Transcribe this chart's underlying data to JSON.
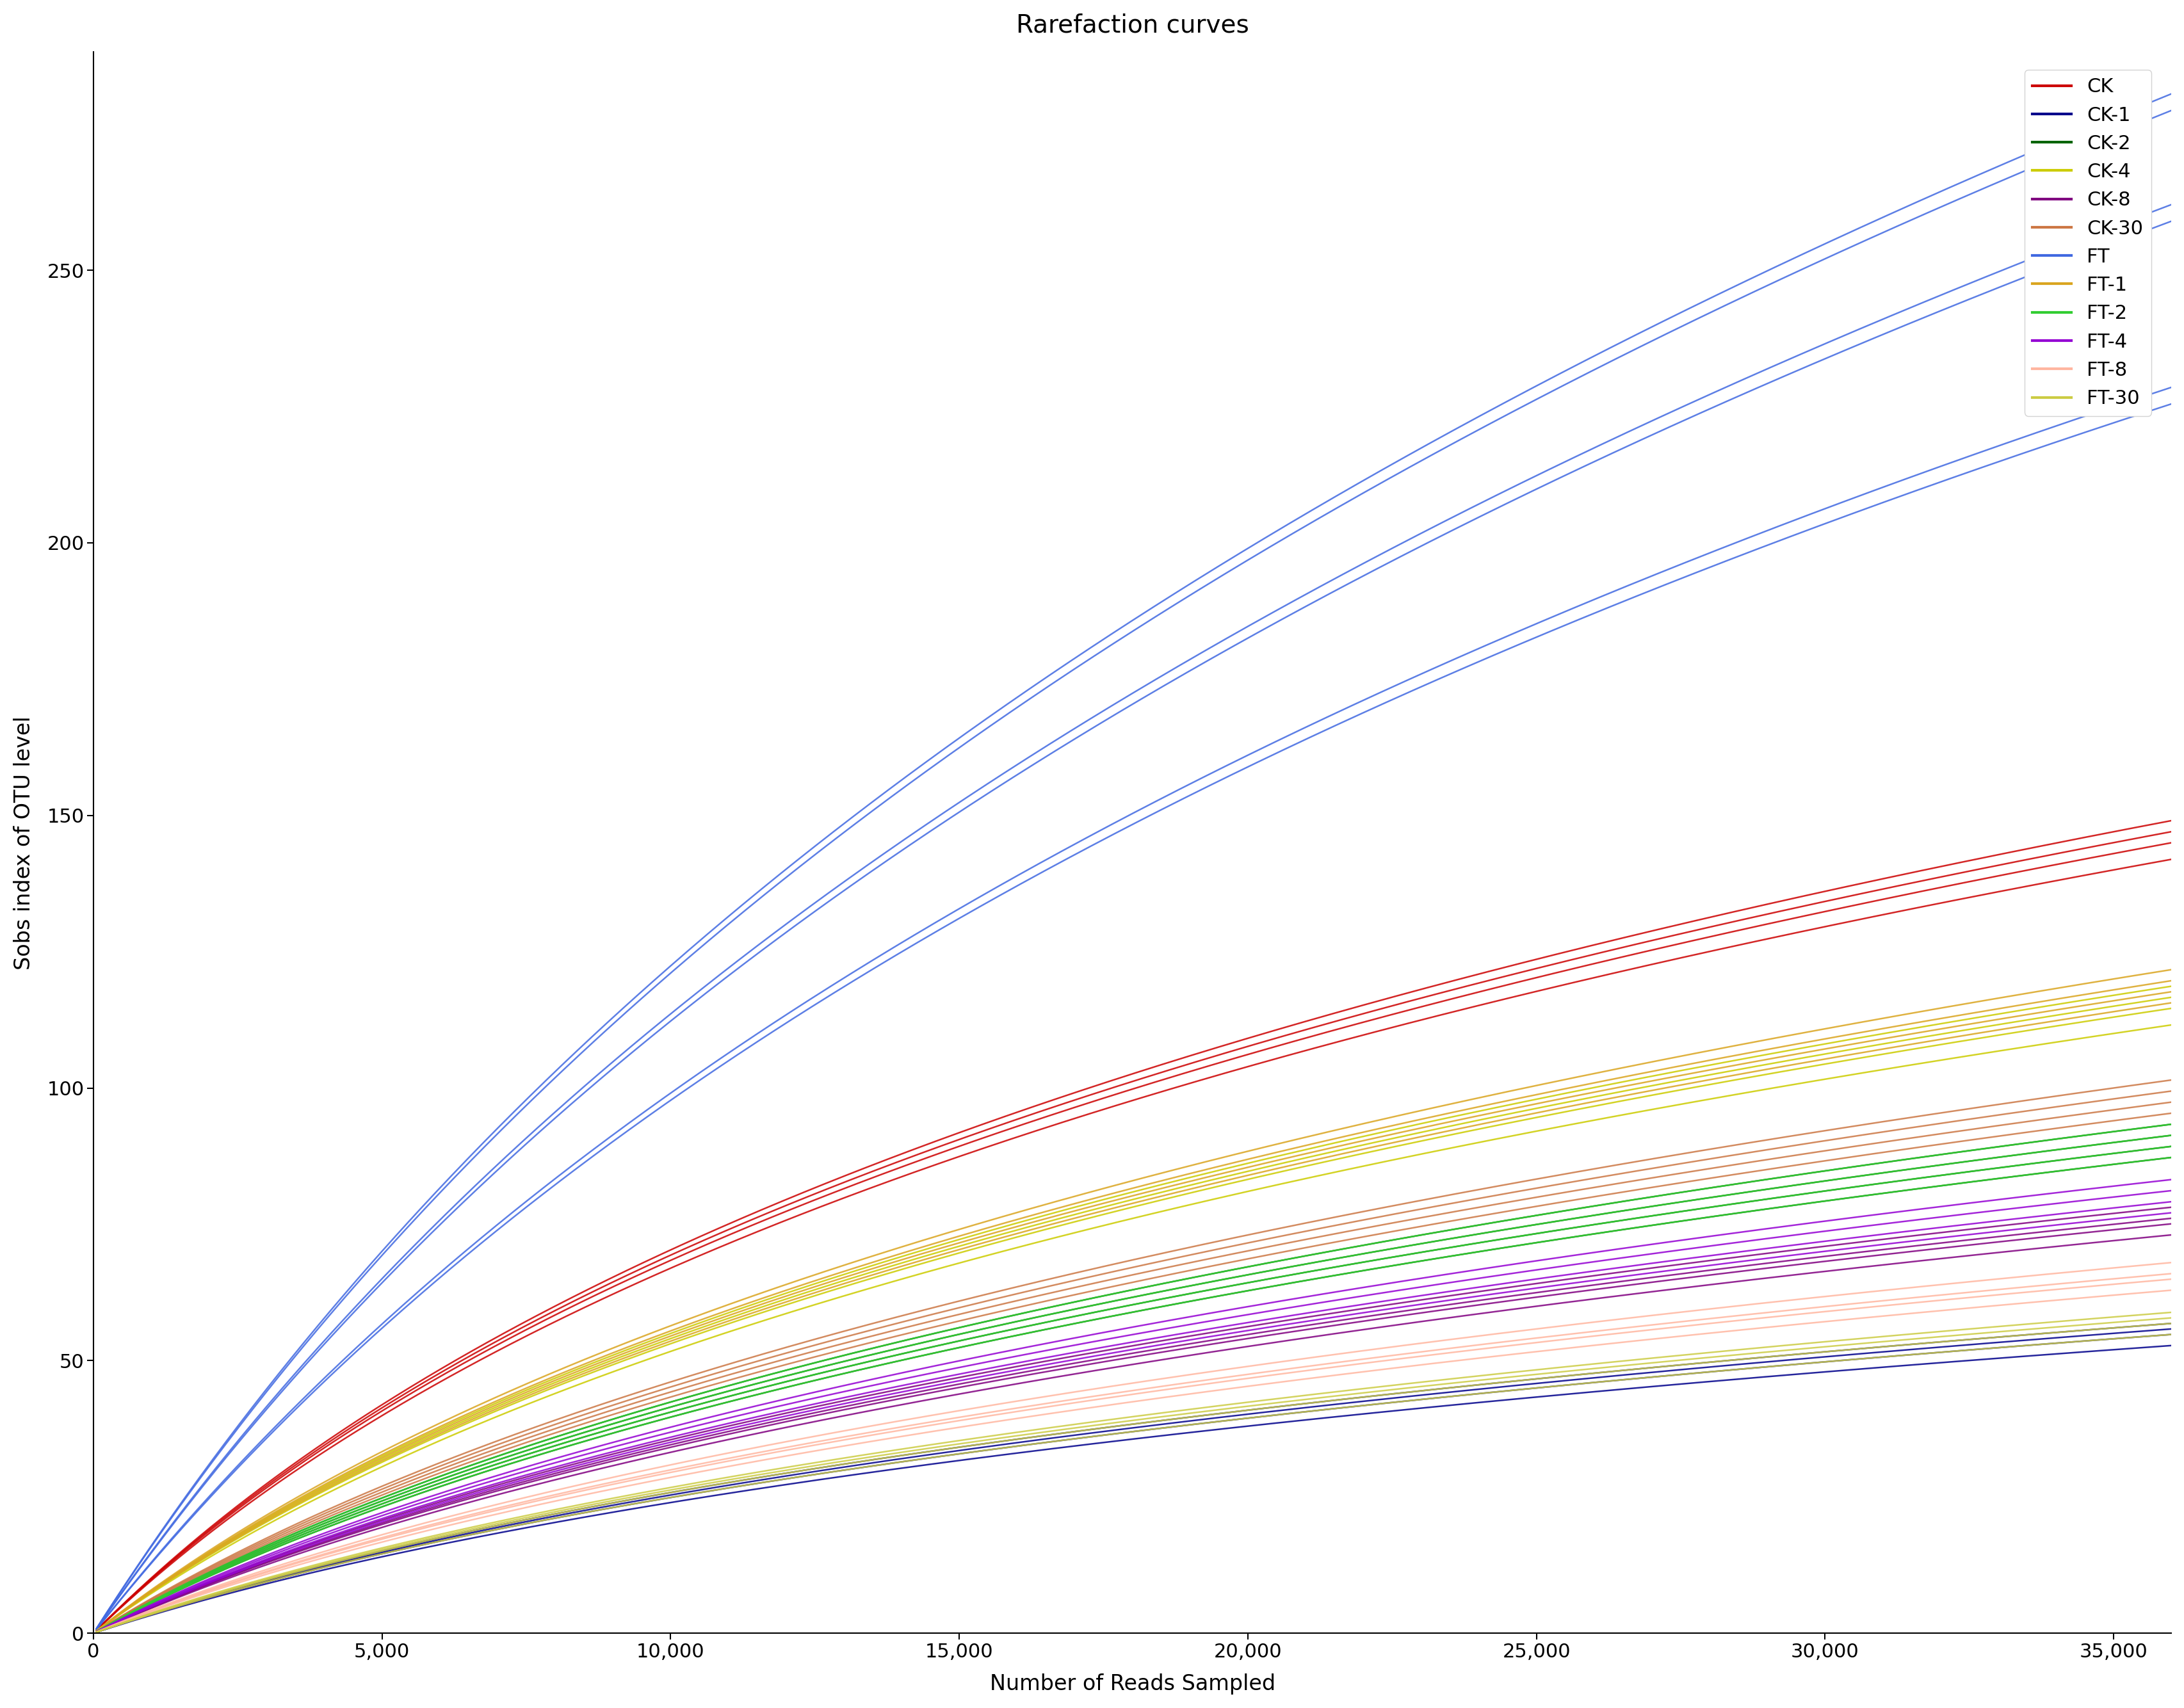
{
  "title": "Rarefaction curves",
  "xlabel": "Number of Reads Sampled",
  "ylabel": "Sobs index of OTU level",
  "xlim": [
    0,
    36000
  ],
  "ylim": [
    0,
    290
  ],
  "xticks": [
    0,
    5000,
    10000,
    15000,
    20000,
    25000,
    30000,
    35000
  ],
  "xticklabels": [
    "0",
    "5,000",
    "10,000",
    "15,000",
    "20,000",
    "25,000",
    "30,000",
    "35,000"
  ],
  "yticks": [
    0,
    50,
    100,
    150,
    200,
    250
  ],
  "yticklabels": [
    "0",
    "50",
    "100",
    "150",
    "200",
    "250"
  ],
  "title_fontsize": 28,
  "label_fontsize": 24,
  "tick_fontsize": 22,
  "legend_fontsize": 22,
  "series": [
    {
      "label": "CK",
      "color": "#cc0000",
      "targets": [
        140,
        143,
        145,
        147
      ],
      "b": 0.00012
    },
    {
      "label": "CK-1",
      "color": "#00008B",
      "targets": [
        52,
        54,
        55,
        56
      ],
      "b": 0.0001
    },
    {
      "label": "CK-2",
      "color": "#006400",
      "targets": [
        86,
        88,
        90,
        92
      ],
      "b": 0.0001
    },
    {
      "label": "CK-4",
      "color": "#cccc00",
      "targets": [
        110,
        113,
        115,
        117
      ],
      "b": 0.00011
    },
    {
      "label": "CK-8",
      "color": "#800080",
      "targets": [
        72,
        74,
        75,
        77
      ],
      "b": 0.0001
    },
    {
      "label": "CK-30",
      "color": "#cc7744",
      "targets": [
        94,
        96,
        98,
        100
      ],
      "b": 0.0001
    },
    {
      "label": "FT",
      "color": "#4169E1",
      "targets": [
        222,
        225,
        255,
        258,
        275,
        278
      ],
      "b": 8e-05
    },
    {
      "label": "FT-1",
      "color": "#DAA520",
      "targets": [
        114,
        116,
        118,
        120
      ],
      "b": 0.00011
    },
    {
      "label": "FT-2",
      "color": "#32CD32",
      "targets": [
        86,
        88,
        90,
        92
      ],
      "b": 0.0001
    },
    {
      "label": "FT-4",
      "color": "#9400D3",
      "targets": [
        76,
        78,
        80,
        82
      ],
      "b": 0.0001
    },
    {
      "label": "FT-8",
      "color": "#FFB6A0",
      "targets": [
        62,
        64,
        65,
        67
      ],
      "b": 0.0001
    },
    {
      "label": "FT-30",
      "color": "#CCCC44",
      "targets": [
        54,
        56,
        57,
        58
      ],
      "b": 0.0001
    }
  ]
}
